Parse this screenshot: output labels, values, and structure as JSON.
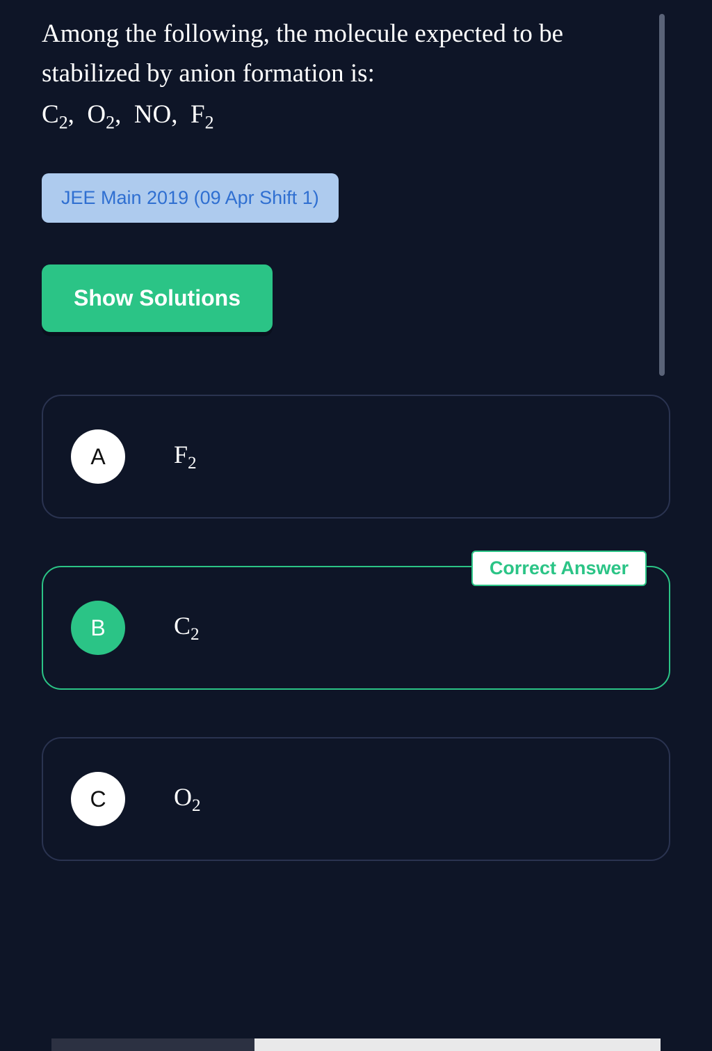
{
  "colors": {
    "page_bg": "#0e1527",
    "text": "#ffffff",
    "tag_bg": "#aecbee",
    "tag_text": "#2f6fd1",
    "button_bg": "#2bc486",
    "button_text": "#ffffff",
    "option_border": "#2a3350",
    "option_border_correct": "#2bc486",
    "badge_bg": "#ffffff",
    "badge_text": "#111111",
    "badge_bg_correct": "#2bc486",
    "badge_text_correct": "#ffffff",
    "correct_label_text": "#2bc486",
    "scrollbar": "#5a6378"
  },
  "typography": {
    "question_fontsize": 37,
    "tag_fontsize": 27,
    "button_fontsize": 32,
    "badge_fontsize": 32,
    "option_fontsize": 36,
    "correct_label_fontsize": 27
  },
  "question": {
    "text": "Among the following, the molecule expected to be stabilized by anion formation is:",
    "formula_html": "C<sub>2</sub>,&nbsp; O<sub>2</sub>,&nbsp; NO,&nbsp; F<sub>2</sub>"
  },
  "exam_tag": "JEE Main 2019 (09 Apr Shift 1)",
  "show_solutions_label": "Show Solutions",
  "correct_answer_label": "Correct Answer",
  "options": [
    {
      "letter": "A",
      "html": "F<sub>2</sub>",
      "correct": false
    },
    {
      "letter": "B",
      "html": "C<sub>2</sub>",
      "correct": true
    },
    {
      "letter": "C",
      "html": "O<sub>2</sub>",
      "correct": false
    }
  ]
}
